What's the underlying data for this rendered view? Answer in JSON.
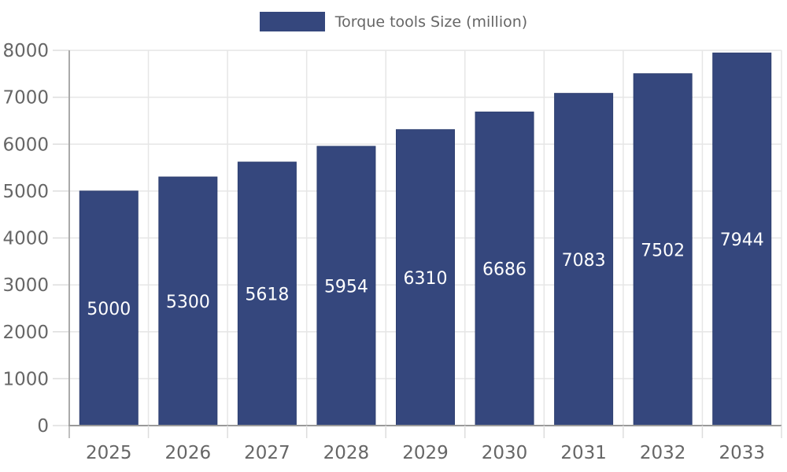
{
  "legend": {
    "label": "Torque tools Size (million)"
  },
  "chart_data": {
    "type": "bar",
    "title": "",
    "xlabel": "",
    "ylabel": "",
    "legend_entries": [
      "Torque tools Size (million)"
    ],
    "legend_position": "top-center",
    "categories": [
      "2025",
      "2026",
      "2027",
      "2028",
      "2029",
      "2030",
      "2031",
      "2032",
      "2033"
    ],
    "values": [
      5000,
      5300,
      5618,
      5954,
      6310,
      6686,
      7083,
      7502,
      7944
    ],
    "bar_value_labels": [
      "5000",
      "5300",
      "5618",
      "5954",
      "6310",
      "6686",
      "7083",
      "7502",
      "7944"
    ],
    "ylim": [
      0,
      8000
    ],
    "ytick_step": 1000,
    "ytick_labels": [
      "0",
      "1000",
      "2000",
      "3000",
      "4000",
      "5000",
      "6000",
      "7000",
      "8000"
    ],
    "grid": true
  },
  "colors": {
    "bar": "#35477D",
    "bar_stroke": "#2e3f70",
    "grid": "#e6e6e6",
    "tick": "#dddddd",
    "x_axis_line": "#999999",
    "y_axis_line": "#aaaaaa",
    "text": "#666666",
    "bar_label_text": "#ffffff"
  }
}
